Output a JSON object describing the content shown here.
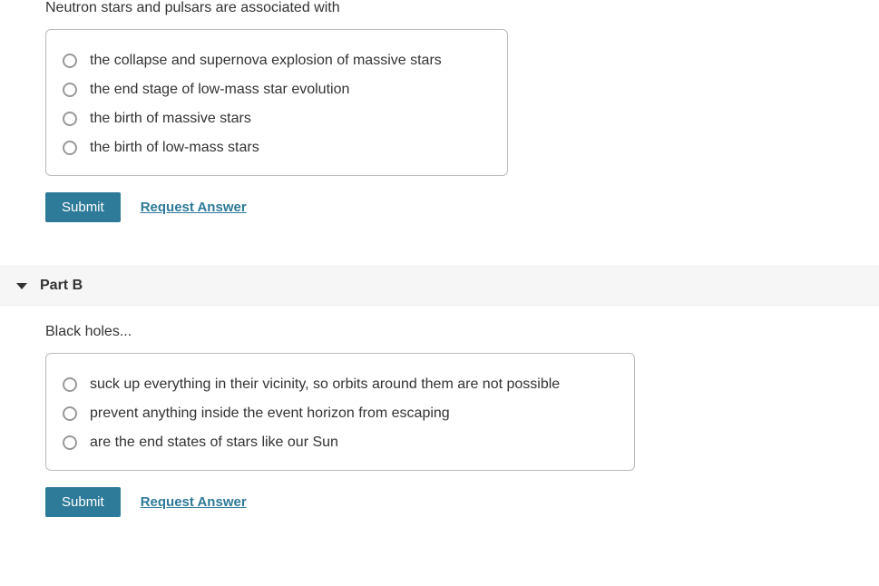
{
  "partA": {
    "question": "Neutron stars and pulsars are associated with",
    "options": [
      "the collapse and supernova explosion of massive stars",
      "the end stage of low-mass star evolution",
      "the birth of massive stars",
      "the birth of low-mass stars"
    ],
    "submit_label": "Submit",
    "request_label": "Request Answer"
  },
  "partB": {
    "header": "Part B",
    "question": "Black holes...",
    "options": [
      "suck up everything in their vicinity, so orbits around them are not possible",
      "prevent anything inside the event horizon from escaping",
      "are the end states of stars like our Sun"
    ],
    "submit_label": "Submit",
    "request_label": "Request Answer"
  },
  "colors": {
    "primary": "#2e7a99",
    "border": "#bbb",
    "text": "#333",
    "header_bg": "#f6f6f6"
  }
}
